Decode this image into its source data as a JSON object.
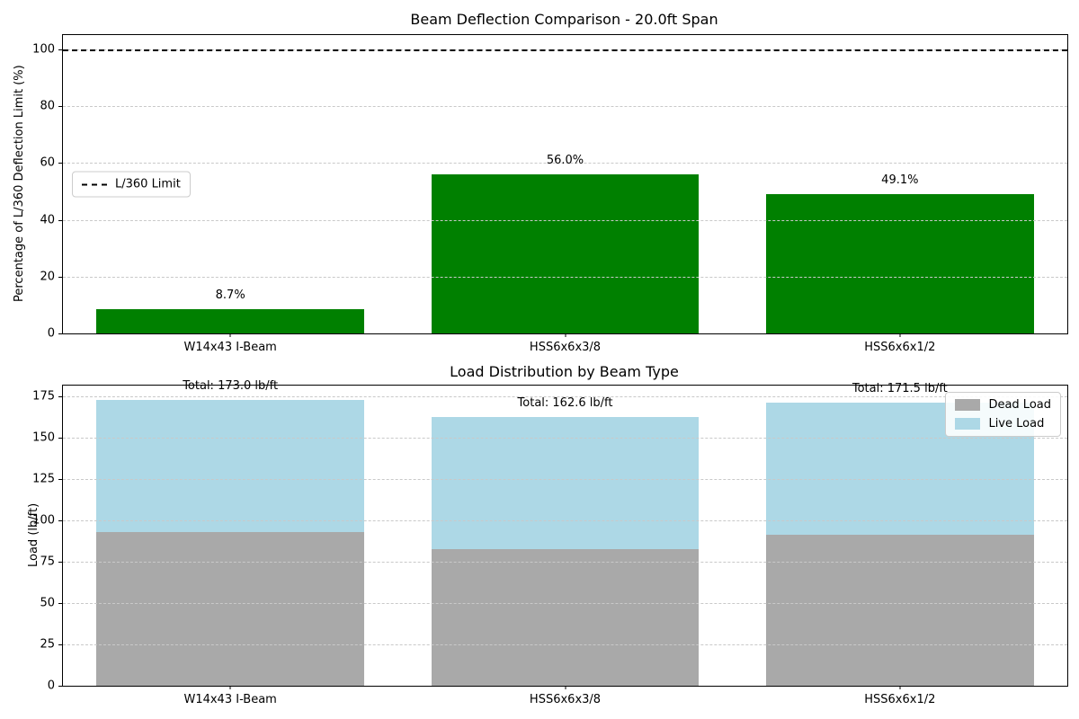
{
  "figure": {
    "background": "#ffffff"
  },
  "chart_data": [
    {
      "type": "bar",
      "title": "Beam Deflection Comparison - 20.0ft Span",
      "ylabel": "Percentage of L/360 Deflection Limit (%)",
      "categories": [
        "W14x43 I-Beam",
        "HSS6x6x3/8",
        "HSS6x6x1/2"
      ],
      "values": [
        8.7,
        56.0,
        49.1
      ],
      "bar_labels": [
        "8.7%",
        "56.0%",
        "49.1%"
      ],
      "bar_color": "#008000",
      "yticks": [
        0,
        20,
        40,
        60,
        80,
        100
      ],
      "ylim": [
        0,
        105
      ],
      "grid": true,
      "reference_line": {
        "value": 100,
        "label": "L/360 Limit",
        "color": "#000000",
        "style": "dashed"
      },
      "legend": {
        "position": "center-left",
        "entries": [
          {
            "label": "L/360 Limit",
            "swatch": "dashed-line",
            "color": "#000000"
          }
        ]
      }
    },
    {
      "type": "stacked-bar",
      "title": "Load Distribution by Beam Type",
      "ylabel": "Load (lb/ft)",
      "categories": [
        "W14x43 I-Beam",
        "HSS6x6x3/8",
        "HSS6x6x1/2"
      ],
      "series": [
        {
          "name": "Dead Load",
          "values": [
            93.0,
            82.6,
            91.5
          ],
          "color": "#a9a9a9"
        },
        {
          "name": "Live Load",
          "values": [
            80.0,
            80.0,
            80.0
          ],
          "color": "#add8e6"
        }
      ],
      "totals": [
        173.0,
        162.6,
        171.5
      ],
      "total_labels": [
        "Total: 173.0 lb/ft",
        "Total: 162.6 lb/ft",
        "Total: 171.5 lb/ft"
      ],
      "yticks": [
        0,
        25,
        50,
        75,
        100,
        125,
        150,
        175
      ],
      "ylim": [
        0,
        181.7
      ],
      "grid": true,
      "legend": {
        "position": "top-right",
        "entries": [
          {
            "label": "Dead Load",
            "swatch": "rect",
            "color": "#a9a9a9"
          },
          {
            "label": "Live Load",
            "swatch": "rect",
            "color": "#add8e6"
          }
        ]
      }
    }
  ]
}
